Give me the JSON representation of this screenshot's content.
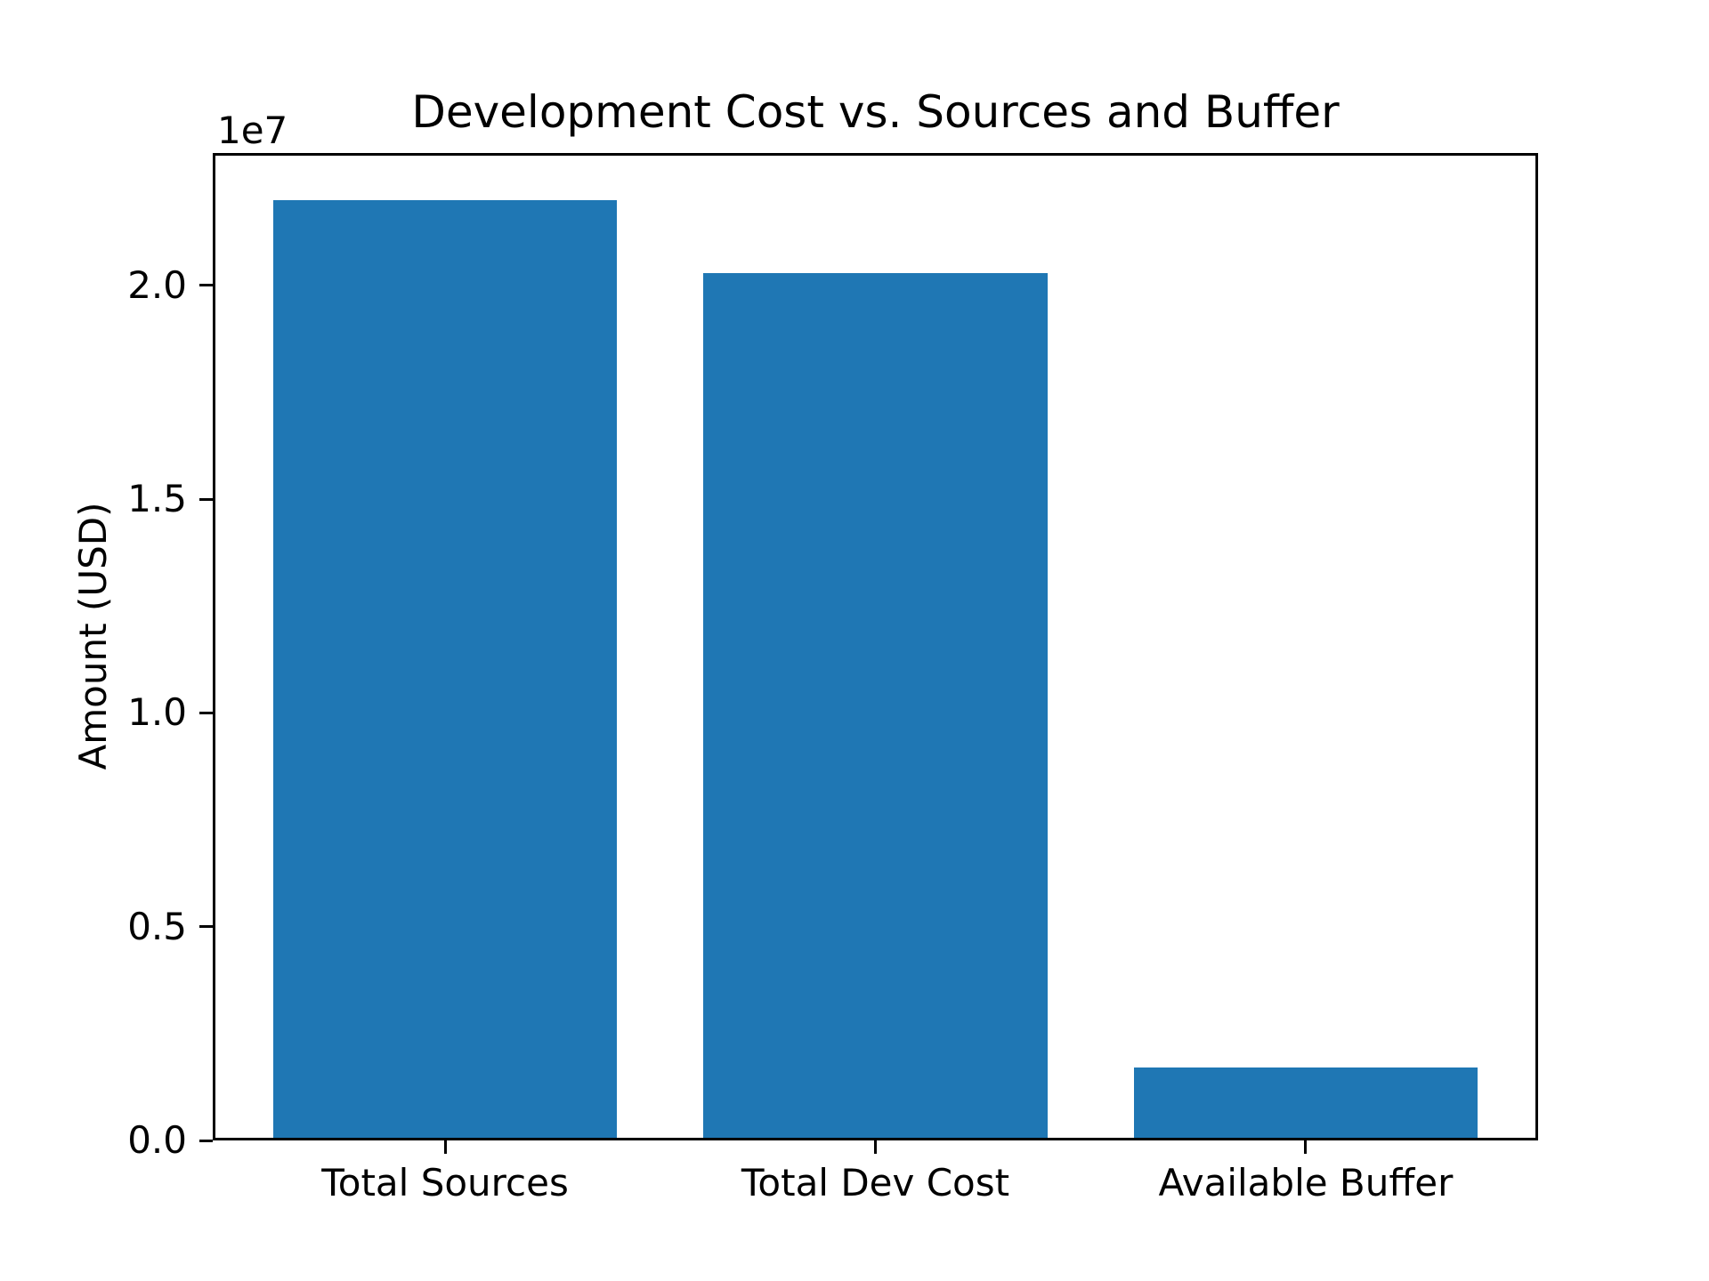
{
  "chart_data": {
    "type": "bar",
    "title": "Development Cost vs. Sources and Buffer",
    "ylabel": "Amount (USD)",
    "xlabel": "",
    "y_offset_label": "1e7",
    "categories": [
      "Total Sources",
      "Total Dev Cost",
      "Available Buffer"
    ],
    "values": [
      22000000,
      20300000,
      1700000
    ],
    "series": [
      {
        "name": "Amount (USD)",
        "values": [
          22000000,
          20300000,
          1700000
        ]
      }
    ],
    "bar_color": "#1f77b4",
    "ylim": [
      0,
      23100000
    ],
    "y_ticks": [
      {
        "value": 0,
        "label": "0.0"
      },
      {
        "value": 5000000,
        "label": "0.5"
      },
      {
        "value": 10000000,
        "label": "1.0"
      },
      {
        "value": 15000000,
        "label": "1.5"
      },
      {
        "value": 20000000,
        "label": "2.0"
      }
    ],
    "grid": false,
    "legend_position": "none"
  }
}
